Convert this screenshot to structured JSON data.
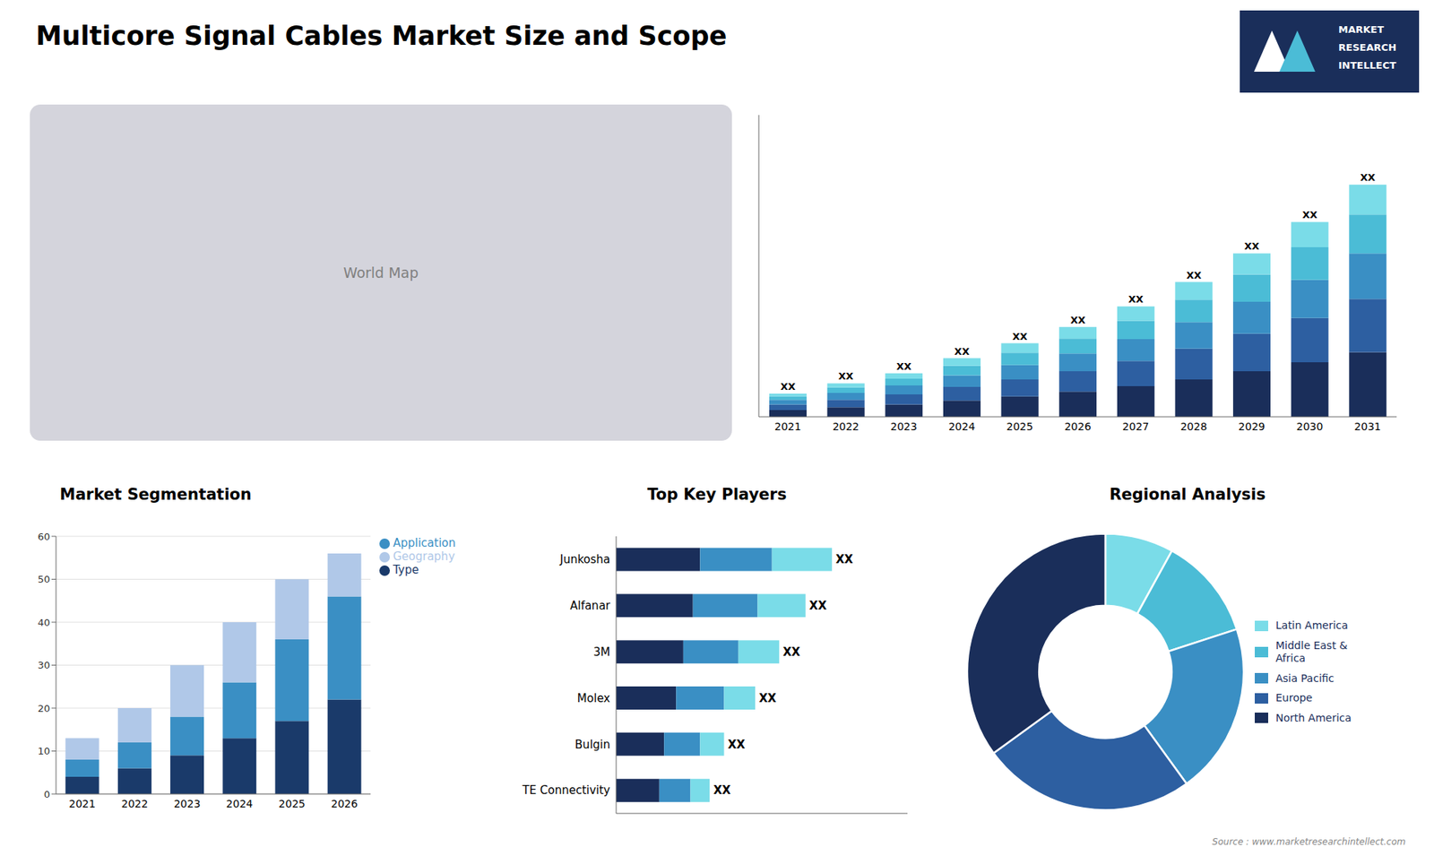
{
  "title": "Multicore Signal Cables Market Size and Scope",
  "annotations": [
    "World Map",
    "MARKET",
    "RESEARCH",
    "INTELLECT",
    "Source : www.marketresearchintellect.com"
  ],
  "chart_data": [
    {
      "type": "bar",
      "stacked": true,
      "categories": [
        "2021",
        "2022",
        "2023",
        "2024",
        "2025",
        "2026",
        "2027",
        "2028",
        "2029",
        "2030",
        "2031"
      ],
      "series": [
        {
          "color": "#1a2e5a",
          "values": [
            1.0,
            1.4,
            1.8,
            2.4,
            3.0,
            3.7,
            4.5,
            5.5,
            6.7,
            8.0,
            9.5
          ]
        },
        {
          "color": "#2d5fa1",
          "values": [
            0.8,
            1.1,
            1.5,
            2.0,
            2.5,
            3.0,
            3.7,
            4.5,
            5.5,
            6.5,
            7.8
          ]
        },
        {
          "color": "#3a8fc4",
          "values": [
            0.7,
            1.0,
            1.3,
            1.7,
            2.1,
            2.6,
            3.2,
            3.9,
            4.7,
            5.6,
            6.7
          ]
        },
        {
          "color": "#4bbcd6",
          "values": [
            0.5,
            0.8,
            1.0,
            1.4,
            1.8,
            2.2,
            2.7,
            3.3,
            4.0,
            4.8,
            5.7
          ]
        },
        {
          "color": "#7adce8",
          "values": [
            0.4,
            0.6,
            0.8,
            1.1,
            1.4,
            1.7,
            2.1,
            2.6,
            3.1,
            3.7,
            4.4
          ]
        }
      ],
      "ylim": [
        0,
        44.33
      ],
      "tick_labels": "x",
      "grid": false,
      "data_labels": true,
      "value_labels": [
        "XX",
        "XX",
        "XX",
        "XX",
        "XX",
        "XX",
        "XX",
        "XX",
        "XX",
        "XX",
        "XX"
      ]
    },
    {
      "type": "bar",
      "title": "Market Segmentation",
      "stacked": true,
      "categories": [
        "2021",
        "2022",
        "2023",
        "2024",
        "2025",
        "2026"
      ],
      "series": [
        {
          "name": "Type",
          "color": "#1a3a6a",
          "values": [
            4,
            6,
            9,
            13,
            17,
            22
          ]
        },
        {
          "name": "Application",
          "color": "#3a8fc4",
          "values": [
            4,
            6,
            9,
            13,
            19,
            24
          ]
        },
        {
          "name": "Geography",
          "color": "#b0c8e8",
          "values": [
            5,
            8,
            12,
            14,
            14,
            10
          ]
        }
      ],
      "ylim": [
        0,
        60
      ],
      "yticks": [
        0,
        10,
        20,
        30,
        40,
        50,
        60
      ],
      "grid": true,
      "legend": "upper right"
    },
    {
      "type": "bar",
      "title": "Top Key Players",
      "orientation": "horizontal",
      "stacked": true,
      "categories": [
        "Junkosha",
        "Alfanar",
        "3M",
        "Molex",
        "Bulgin",
        "TE Connectivity"
      ],
      "series": [
        {
          "color": "#1a2e5a",
          "values": [
            3.5,
            3.2,
            2.8,
            2.5,
            2.0,
            1.8
          ]
        },
        {
          "color": "#3a8fc4",
          "values": [
            3.0,
            2.7,
            2.3,
            2.0,
            1.5,
            1.3
          ]
        },
        {
          "color": "#7adce8",
          "values": [
            2.5,
            2.0,
            1.7,
            1.3,
            1.0,
            0.8
          ]
        }
      ],
      "xlim": [
        0,
        12.15
      ],
      "tick_labels": "y",
      "grid": false,
      "data_labels": true,
      "value_labels": [
        "XX",
        "XX",
        "XX",
        "XX",
        "XX",
        "XX"
      ]
    },
    {
      "type": "donut",
      "title": "Regional Analysis",
      "categories": [
        "Latin America",
        "Middle East &\nAfrica",
        "Asia Pacific",
        "Europe",
        "North America"
      ],
      "values": [
        8,
        12,
        20,
        25,
        35
      ],
      "colors": [
        "#7adce8",
        "#4bbcd6",
        "#3a8fc4",
        "#2d5fa1",
        "#1a2e5a"
      ],
      "legend": "right"
    }
  ]
}
